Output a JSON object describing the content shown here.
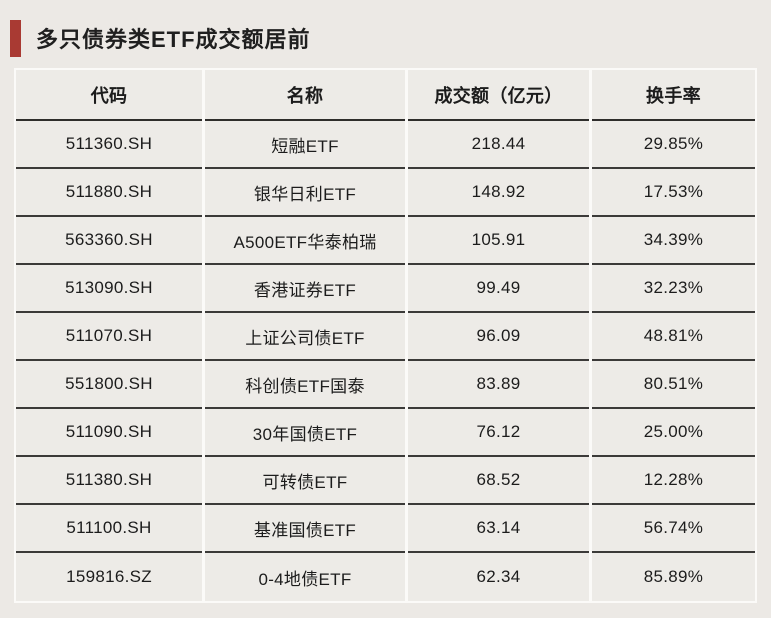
{
  "page": {
    "background_color": "#ece9e5",
    "accent_color": "#a93a33",
    "divider_color": "#3b3a38",
    "cell_background": "#edebe7"
  },
  "title": "多只债券类ETF成交额居前",
  "table": {
    "headers": [
      "代码",
      "名称",
      "成交额（亿元）",
      "换手率"
    ],
    "rows": [
      [
        "511360.SH",
        "短融ETF",
        "218.44",
        "29.85%"
      ],
      [
        "511880.SH",
        "银华日利ETF",
        "148.92",
        "17.53%"
      ],
      [
        "563360.SH",
        "A500ETF华泰柏瑞",
        "105.91",
        "34.39%"
      ],
      [
        "513090.SH",
        "香港证券ETF",
        "99.49",
        "32.23%"
      ],
      [
        "511070.SH",
        "上证公司债ETF",
        "96.09",
        "48.81%"
      ],
      [
        "551800.SH",
        "科创债ETF国泰",
        "83.89",
        "80.51%"
      ],
      [
        "511090.SH",
        "30年国债ETF",
        "76.12",
        "25.00%"
      ],
      [
        "511380.SH",
        "可转债ETF",
        "68.52",
        "12.28%"
      ],
      [
        "511100.SH",
        "基准国债ETF",
        "63.14",
        "56.74%"
      ],
      [
        "159816.SZ",
        "0-4地债ETF",
        "62.34",
        "85.89%"
      ]
    ]
  },
  "chart_data": {
    "type": "table",
    "title": "多只债券类ETF成交额居前",
    "columns": [
      "代码",
      "名称",
      "成交额（亿元）",
      "换手率"
    ],
    "rows": [
      {
        "代码": "511360.SH",
        "名称": "短融ETF",
        "成交额（亿元）": 218.44,
        "换手率": "29.85%"
      },
      {
        "代码": "511880.SH",
        "名称": "银华日利ETF",
        "成交额（亿元）": 148.92,
        "换手率": "17.53%"
      },
      {
        "代码": "563360.SH",
        "名称": "A500ETF华泰柏瑞",
        "成交额（亿元）": 105.91,
        "换手率": "34.39%"
      },
      {
        "代码": "513090.SH",
        "名称": "香港证券ETF",
        "成交额（亿元）": 99.49,
        "换手率": "32.23%"
      },
      {
        "代码": "511070.SH",
        "名称": "上证公司债ETF",
        "成交额（亿元）": 96.09,
        "换手率": "48.81%"
      },
      {
        "代码": "551800.SH",
        "名称": "科创债ETF国泰",
        "成交额（亿元）": 83.89,
        "换手率": "80.51%"
      },
      {
        "代码": "511090.SH",
        "名称": "30年国债ETF",
        "成交额（亿元）": 76.12,
        "换手率": "25.00%"
      },
      {
        "代码": "511380.SH",
        "名称": "可转债ETF",
        "成交额（亿元）": 68.52,
        "换手率": "12.28%"
      },
      {
        "代码": "511100.SH",
        "名称": "基准国债ETF",
        "成交额（亿元）": 63.14,
        "换手率": "56.74%"
      },
      {
        "代码": "159816.SZ",
        "名称": "0-4地债ETF",
        "成交额（亿元）": 62.34,
        "换手率": "85.89%"
      }
    ]
  }
}
